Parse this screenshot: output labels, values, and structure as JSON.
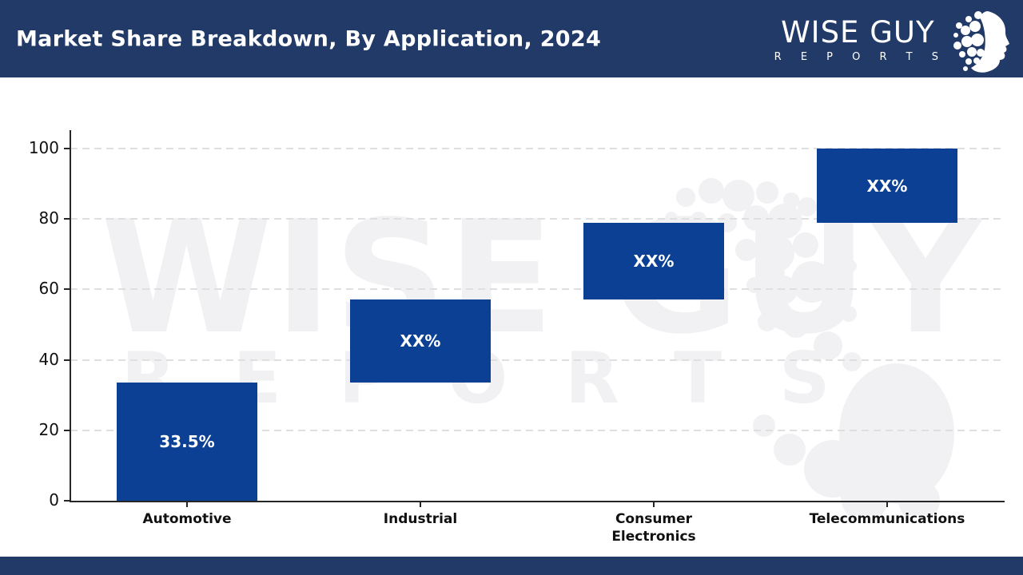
{
  "header": {
    "title": "Market Share Breakdown, By Application, 2024"
  },
  "brand": {
    "name": "WISE GUY",
    "sub": "R E P O R T S",
    "face_icon": "dotted-head-profile-icon"
  },
  "watermark": {
    "line1": "WISE GUY",
    "line2": "REPORTS"
  },
  "footer": {
    "text": ""
  },
  "colors": {
    "header_bg": "#213a67",
    "footer_bg": "#213a67",
    "bar_blue": "#0b4094",
    "grid_gray": "#dfdfdf",
    "axis_dark": "#262626",
    "watermark_gray": "#f1f1f3",
    "text_white": "#ffffff",
    "text_dark": "#111111"
  },
  "chart_data": {
    "type": "bar",
    "subtype": "floating-waterfall",
    "title": "Market Share Breakdown, By Application, 2024",
    "xlabel": "",
    "ylabel": "",
    "ylim": [
      0,
      100
    ],
    "yticks": [
      0,
      20,
      40,
      60,
      80,
      100
    ],
    "grid": "horizontal dashed",
    "legend": "none",
    "categories": [
      "Automotive",
      "Industrial",
      "Consumer\nElectronics",
      "Telecommunications"
    ],
    "segments": [
      {
        "category": "Automotive",
        "start": 0,
        "end": 33.5,
        "label": "33.5%"
      },
      {
        "category": "Industrial",
        "start": 33.5,
        "end": 57.2,
        "label": "XX%"
      },
      {
        "category": "Consumer Electronics",
        "start": 57.2,
        "end": 78.8,
        "label": "XX%"
      },
      {
        "category": "Telecommunications",
        "start": 78.8,
        "end": 100,
        "label": "XX%"
      }
    ],
    "bar_labels": [
      "33.5%",
      "XX%",
      "XX%",
      "XX%"
    ]
  }
}
